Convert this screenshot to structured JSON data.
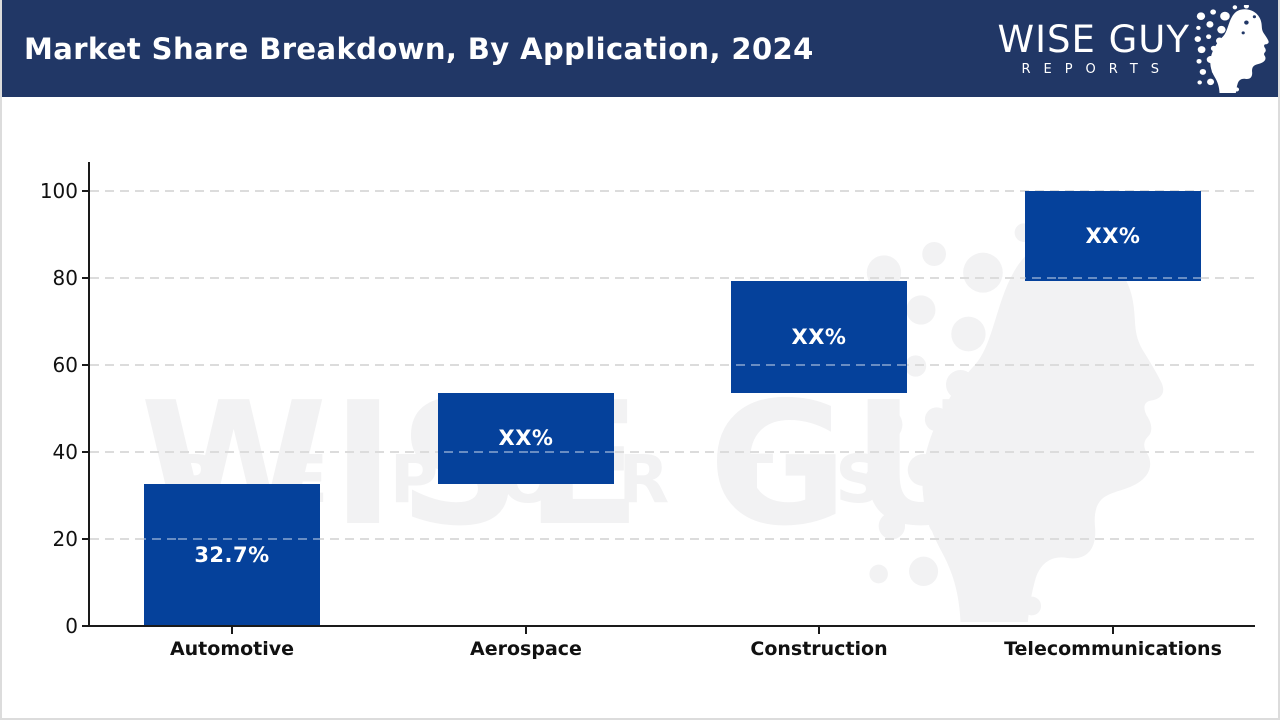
{
  "header": {
    "title": "Market Share Breakdown, By Application, 2024",
    "logo": {
      "line1": "WISE GUY",
      "line2": "REPORTS"
    }
  },
  "watermark": {
    "line1": "WISE GUY",
    "line2": "REPORTS"
  },
  "chart_data": {
    "type": "bar",
    "subtype": "floating-segment breakdown (waterfall style)",
    "title": "Market Share Breakdown, By Application, 2024",
    "categories": [
      "Automotive",
      "Aerospace",
      "Construction",
      "Telecommunications"
    ],
    "series": [
      {
        "name": "Market share (%)",
        "segments": [
          {
            "category": "Automotive",
            "start": 0,
            "end": 32.7,
            "label": "32.7%"
          },
          {
            "category": "Aerospace",
            "start": 32.7,
            "end": 53.5,
            "label": "XX%"
          },
          {
            "category": "Construction",
            "start": 53.5,
            "end": 79.2,
            "label": "XX%"
          },
          {
            "category": "Telecommunications",
            "start": 79.2,
            "end": 100,
            "label": "XX%"
          }
        ]
      }
    ],
    "xlabel": "",
    "ylabel": "",
    "ylim": [
      0,
      100
    ],
    "yticks": [
      0,
      20,
      40,
      60,
      80,
      100
    ],
    "grid": "horizontal dashed",
    "legend": "none",
    "colors": {
      "bar": "#05419b",
      "header_background": "#213766",
      "grid": "#dcdcdc",
      "axis": "#1a1a1a",
      "watermark": "#f2f2f3",
      "bar_label_text": "#ffffff",
      "title_text": "#ffffff"
    }
  }
}
